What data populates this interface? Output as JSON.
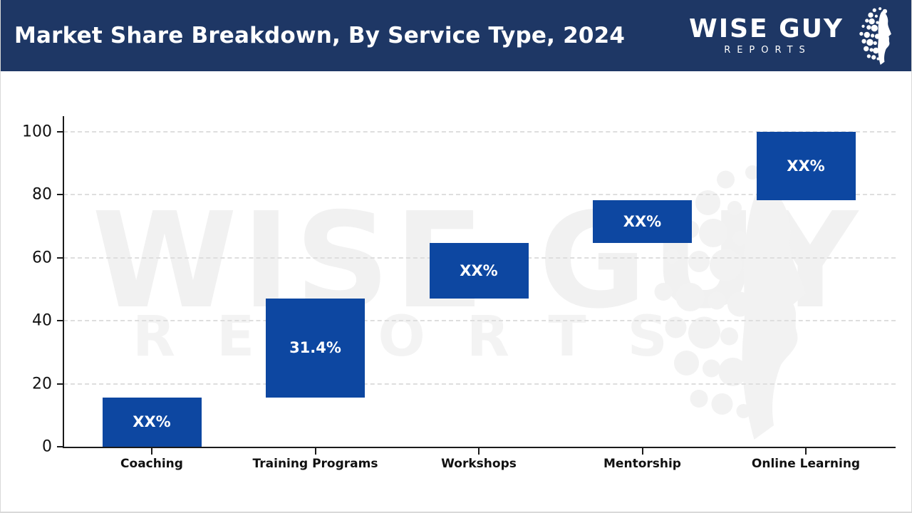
{
  "header": {
    "title": "Market Share Breakdown, By Service Type, 2024",
    "logo": {
      "line1": "WISE GUY",
      "line2": "REPORTS"
    }
  },
  "watermark": {
    "line1": "WISE GUY",
    "line2": "REPORTS"
  },
  "colors": {
    "header_bg": "#1e3765",
    "bar": "#0d47a1",
    "gridline": "#dedede",
    "axis": "#1a1a1a",
    "watermark": "#f1f1f1"
  },
  "chart_data": {
    "type": "bar",
    "subtype": "waterfall",
    "title": "Market Share Breakdown, By Service Type, 2024",
    "categories": [
      "Coaching",
      "Training Programs",
      "Workshops",
      "Mentorship",
      "Online Learning"
    ],
    "values": [
      15.7,
      31.4,
      17.6,
      13.5,
      21.8
    ],
    "cumulative_segments": [
      [
        0,
        15.7
      ],
      [
        15.7,
        47.1
      ],
      [
        47.1,
        64.7
      ],
      [
        64.7,
        78.2
      ],
      [
        78.2,
        100
      ]
    ],
    "bar_labels": [
      "XX%",
      "31.4%",
      "XX%",
      "XX%",
      "XX%"
    ],
    "xlabel": "",
    "ylabel": "",
    "yticks": [
      0,
      20,
      40,
      60,
      80,
      100
    ],
    "ylim": [
      0,
      100
    ],
    "grid": "horizontal-dashed",
    "legend": "none",
    "bar_color": "#0d47a1"
  }
}
